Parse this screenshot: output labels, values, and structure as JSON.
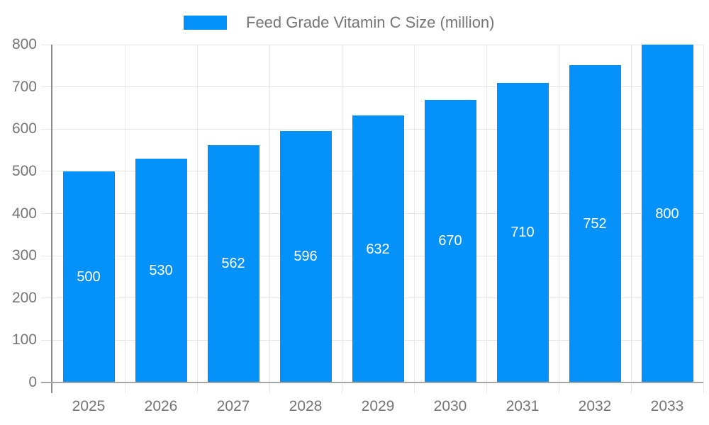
{
  "chart_data": {
    "type": "bar",
    "title": "Feed Grade Vitamin C Size (million)",
    "legend": [
      "Feed Grade Vitamin C Size (million)"
    ],
    "legend_position": "top-center",
    "categories": [
      "2025",
      "2026",
      "2027",
      "2028",
      "2029",
      "2030",
      "2031",
      "2032",
      "2033"
    ],
    "series": [
      {
        "name": "Feed Grade Vitamin C Size (million)",
        "values": [
          500,
          530,
          562,
          596,
          632,
          670,
          710,
          752,
          800
        ]
      }
    ],
    "value_labels_shown": true,
    "xlabel": "",
    "ylabel": "",
    "ylim": [
      0,
      800
    ],
    "y_tick_step": 100,
    "y_tick_labels": [
      "0",
      "100",
      "200",
      "300",
      "400",
      "500",
      "600",
      "700",
      "800"
    ],
    "grid": "both"
  },
  "colors": {
    "bar": "#0591FA",
    "grid": "#e7e7e7",
    "y_axis": "#8c8c8c",
    "x_axis": "#a6a6a6",
    "axis_text": "#757575",
    "bar_label": "#ffffff",
    "background": "#ffffff"
  }
}
